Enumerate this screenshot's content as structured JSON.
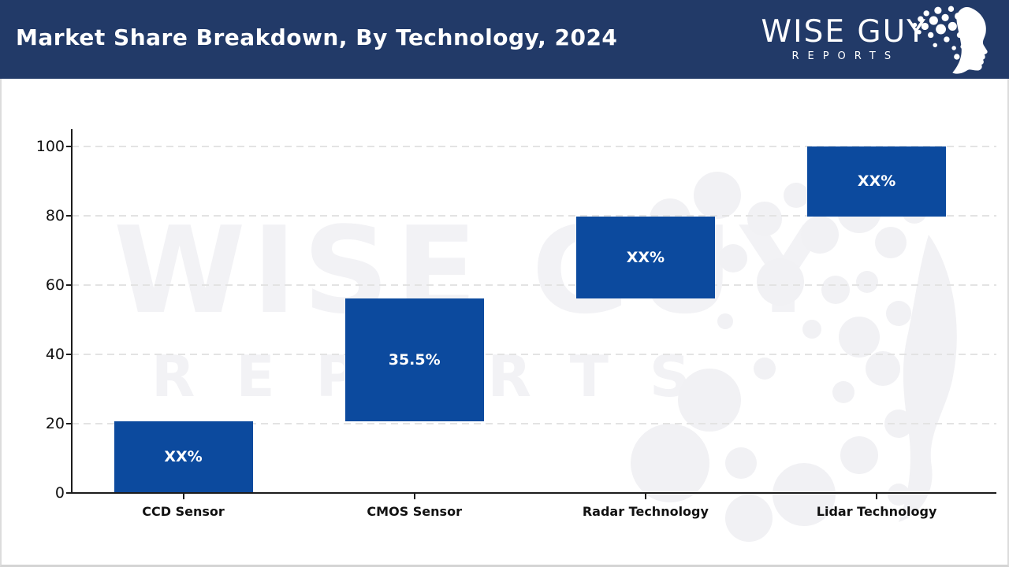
{
  "header": {
    "title": "Market Share Breakdown, By Technology, 2024",
    "logo": {
      "name": "WISE GUY",
      "sub": "REPORTS"
    }
  },
  "watermark": {
    "line1": "WISE GUY",
    "line2": "REPORTS"
  },
  "chart_data": {
    "type": "bar",
    "subtype": "waterfall",
    "title": "Market Share Breakdown, By Technology, 2024",
    "categories": [
      "CCD Sensor",
      "CMOS Sensor",
      "Radar Technology",
      "Lidar Technology"
    ],
    "segments": [
      {
        "category": "CCD Sensor",
        "label": "XX%",
        "start": 0,
        "end": 20.7
      },
      {
        "category": "CMOS Sensor",
        "label": "35.5%",
        "start": 20.7,
        "end": 56.2
      },
      {
        "category": "Radar Technology",
        "label": "XX%",
        "start": 56.2,
        "end": 79.8
      },
      {
        "category": "Lidar Technology",
        "label": "XX%",
        "start": 79.8,
        "end": 100
      }
    ],
    "y_ticks": [
      0,
      20,
      40,
      60,
      80,
      100
    ],
    "ylim": [
      0,
      105
    ],
    "xlabel": "",
    "ylabel": "",
    "grid": "horizontal-dashed",
    "legend": "none",
    "bar_color": "#0c4a9e",
    "label_color": "#ffffff",
    "header_color": "#223a68"
  }
}
